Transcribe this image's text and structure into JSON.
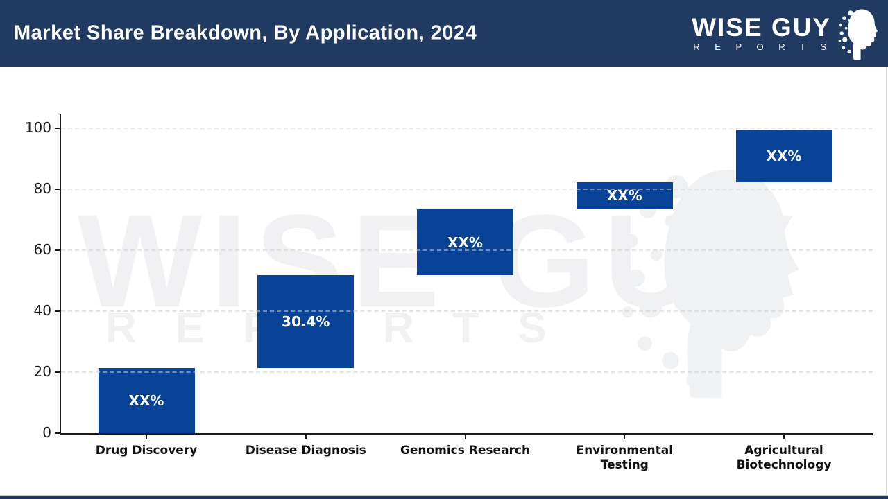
{
  "header": {
    "title": "Market Share Breakdown, By Application, 2024",
    "logo": {
      "line1": "WISE GUY",
      "line2": "R E P O R T S"
    }
  },
  "watermark": {
    "line1": "WISE GUY",
    "line2": "REPORTS"
  },
  "colors": {
    "header_navy": "#213a61",
    "bar_blue": "#084398",
    "bar_label_white": "#ffffff",
    "gridline_gray": "#dcdcdc",
    "watermark_gray": "#f1f1f3"
  },
  "chart_data": {
    "type": "bar",
    "subtype": "waterfall",
    "title": "Market Share Breakdown, By Application, 2024",
    "xlabel": "",
    "ylabel": "",
    "ylim": [
      0,
      104.5
    ],
    "yticks": [
      0,
      20,
      40,
      60,
      80,
      100
    ],
    "grid": "horizontal-dashed",
    "legend": "none",
    "categories": [
      "Drug Discovery",
      "Disease Diagnosis",
      "Genomics Research",
      "Environmental Testing",
      "Agricultural Biotechnology"
    ],
    "segments": [
      {
        "category": "Drug Discovery",
        "label_lines": [
          "Drug Discovery"
        ],
        "start": 0,
        "end": 21.4,
        "value_label": "XX%"
      },
      {
        "category": "Disease Diagnosis",
        "label_lines": [
          "Disease Diagnosis"
        ],
        "start": 21.4,
        "end": 51.8,
        "value_label": "30.4%"
      },
      {
        "category": "Genomics Research",
        "label_lines": [
          "Genomics Research"
        ],
        "start": 51.8,
        "end": 73.4,
        "value_label": "XX%"
      },
      {
        "category": "Environmental Testing",
        "label_lines": [
          "Environmental",
          "Testing"
        ],
        "start": 73.4,
        "end": 82.3,
        "value_label": "XX%"
      },
      {
        "category": "Agricultural Biotechnology",
        "label_lines": [
          "Agricultural",
          "Biotechnology"
        ],
        "start": 82.3,
        "end": 99.5,
        "value_label": "XX%"
      }
    ]
  }
}
